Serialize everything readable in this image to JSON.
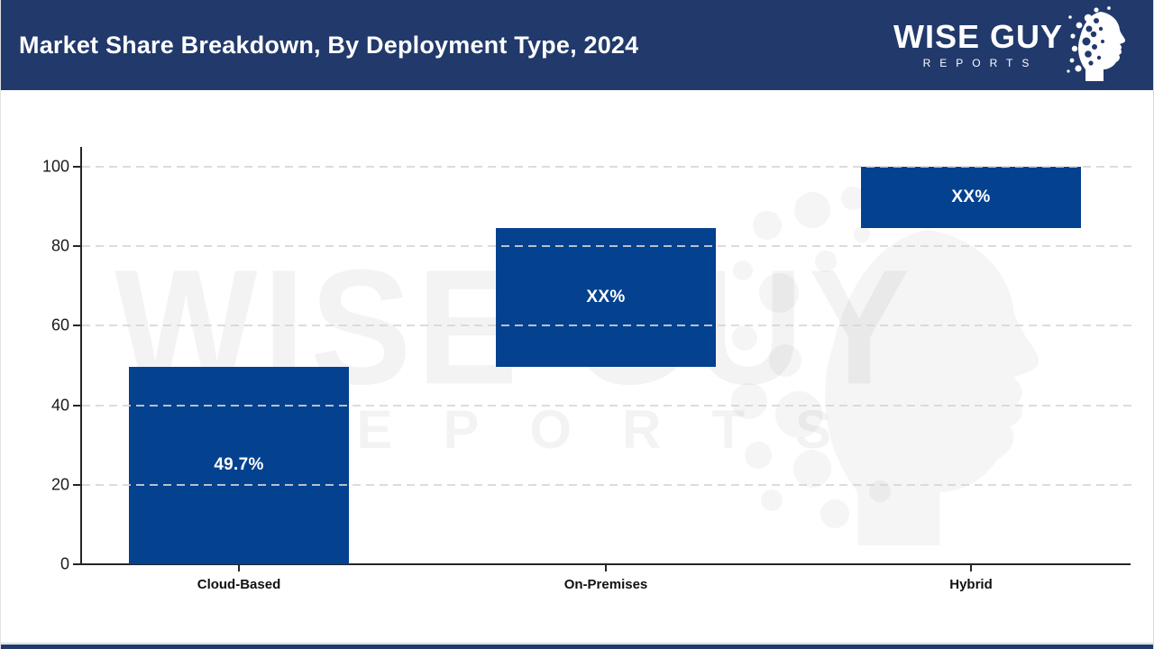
{
  "header": {
    "title": "Market Share Breakdown, By Deployment Type, 2024",
    "logo": {
      "line1": "WISE GUY",
      "line2": "REPORTS"
    }
  },
  "watermark": {
    "line1": "WISE GUY",
    "line2": "REPORTS"
  },
  "chart_data": {
    "type": "bar",
    "variant": "floating-segment-waterfall",
    "title": "Market Share Breakdown, By Deployment Type, 2024",
    "categories": [
      "Cloud-Based",
      "On-Premises",
      "Hybrid"
    ],
    "segments": [
      {
        "category": "Cloud-Based",
        "start": 0,
        "end": 49.7,
        "label": "49.7%"
      },
      {
        "category": "On-Premises",
        "start": 49.7,
        "end": 84.5,
        "label": "XX%"
      },
      {
        "category": "Hybrid",
        "start": 84.5,
        "end": 100,
        "label": "XX%"
      }
    ],
    "yticks": [
      0,
      20,
      40,
      60,
      80,
      100
    ],
    "ylim": [
      0,
      105
    ],
    "xlabel": "",
    "ylabel": "",
    "grid": "horizontal-dashed",
    "legend": "none",
    "bar_color": "#04418f",
    "bar_label_color": "#ffffff",
    "axis_color": "#262626",
    "grid_color": "#d6d6d6"
  }
}
